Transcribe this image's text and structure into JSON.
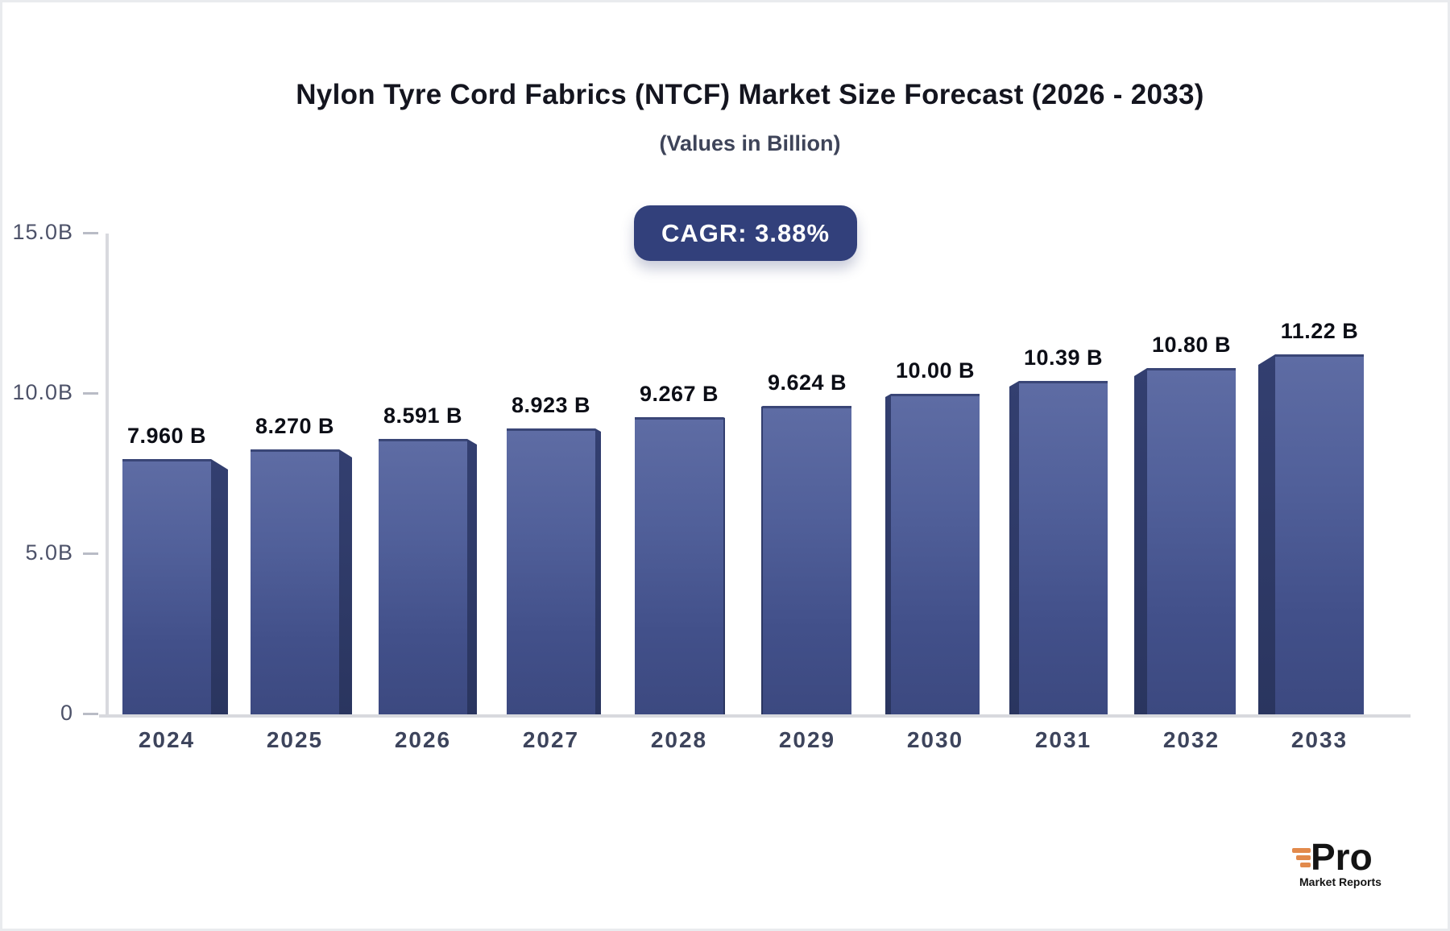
{
  "header": {
    "title": "Nylon Tyre Cord Fabrics (NTCF) Market Size Forecast (2026 - 2033)",
    "subtitle": "(Values in Billion)",
    "cagr_label": "CAGR: 3.88%"
  },
  "chart_data": {
    "type": "bar",
    "title": "Nylon Tyre Cord Fabrics (NTCF) Market Size Forecast (2026 - 2033)",
    "subtitle": "(Values in Billion)",
    "categories": [
      "2024",
      "2025",
      "2026",
      "2027",
      "2028",
      "2029",
      "2030",
      "2031",
      "2032",
      "2033"
    ],
    "values": [
      7.96,
      8.27,
      8.591,
      8.923,
      9.267,
      9.624,
      10.0,
      10.39,
      10.8,
      11.22
    ],
    "value_labels": [
      "7.960 B",
      "8.270 B",
      "8.591 B",
      "8.923 B",
      "9.267 B",
      "9.624 B",
      "10.00 B",
      "10.39 B",
      "10.80 B",
      "11.22 B"
    ],
    "y_ticks": [
      {
        "label": "15.0B",
        "value": 15
      },
      {
        "label": "10.0B",
        "value": 10
      },
      {
        "label": "5.0B",
        "value": 5
      },
      {
        "label": "0",
        "value": 0
      }
    ],
    "ylim": [
      0,
      15
    ],
    "xlabel": "",
    "ylabel": "",
    "grid": false,
    "legend": false,
    "annotations": [
      "CAGR: 3.88%"
    ]
  },
  "colors": {
    "badge_bg": "#32407b",
    "badge_text": "#ffffff",
    "bar_face_top": "#5e6ca4",
    "bar_face_bottom": "#3c4980",
    "bar_side": "#333f70",
    "axis_line": "#d8d9de",
    "tick_text": "#4d5269",
    "x_label_text": "#3d445c",
    "logo_bar_orange": "#e28a4c"
  },
  "logo": {
    "name": "Pro",
    "tagline": "Market Reports"
  }
}
